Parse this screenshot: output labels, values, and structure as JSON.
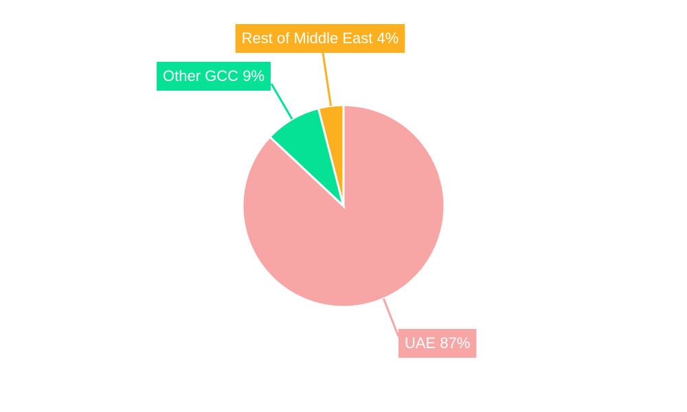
{
  "chart_data": {
    "type": "pie",
    "categories": [
      "UAE",
      "Other GCC",
      "Rest of Middle East"
    ],
    "values": [
      87,
      9,
      4
    ],
    "value_labels": [
      "87%",
      "9%",
      "4%"
    ],
    "colors": [
      "#f7a5a5",
      "#05e195",
      "#fdb01f"
    ]
  }
}
